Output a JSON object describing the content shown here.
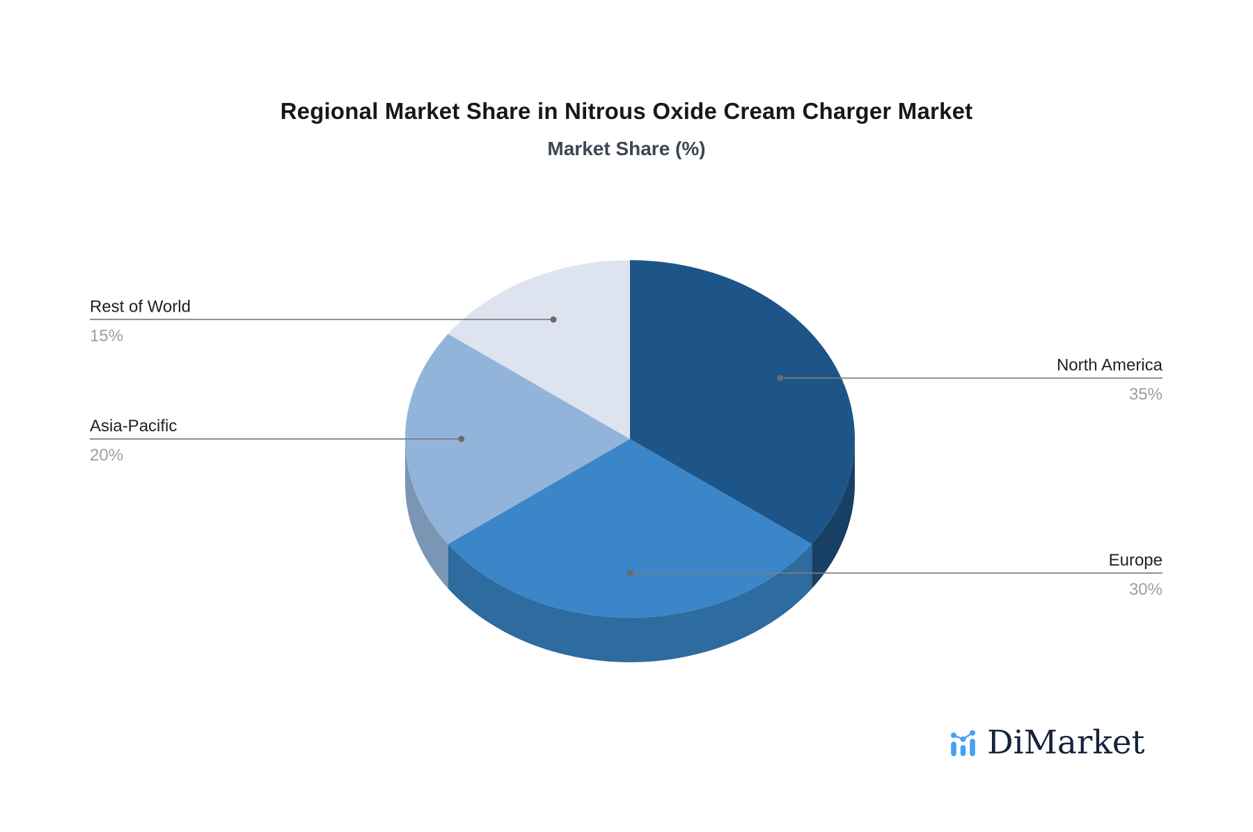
{
  "header": {
    "title": "Regional Market Share in Nitrous Oxide Cream Charger Market",
    "subtitle": "Market Share (%)"
  },
  "chart_data": {
    "type": "pie",
    "style": "3d",
    "title": "Regional Market Share in Nitrous Oxide Cream Charger Market",
    "subtitle": "Market Share (%)",
    "labels": [
      "North America",
      "Europe",
      "Asia-Pacific",
      "Rest of World"
    ],
    "values": [
      35,
      30,
      20,
      15
    ],
    "unit": "%",
    "display_values": [
      "35%",
      "30%",
      "20%",
      "15%"
    ],
    "colors": [
      "#1d5588",
      "#3b86c9",
      "#92b4da",
      "#dde4ef"
    ],
    "side_colors": [
      "#183f64",
      "#2e6b9e",
      "#7b96b4",
      "#b9c4d4"
    ],
    "start_angle_deg": -90,
    "direction": "clockwise",
    "label_style": "callout",
    "label_color": "#202124",
    "value_color": "#9aa0a6",
    "leader_line_color": "#7d7d7d",
    "leader_dot_color": "#6b6b6b",
    "legend_position": "none"
  },
  "branding": {
    "logo_text": "DiMarket",
    "logo_icon": "bar-chart-with-dots-icon",
    "logo_icon_color": "#45a1f5",
    "logo_text_color": "#17223c"
  }
}
